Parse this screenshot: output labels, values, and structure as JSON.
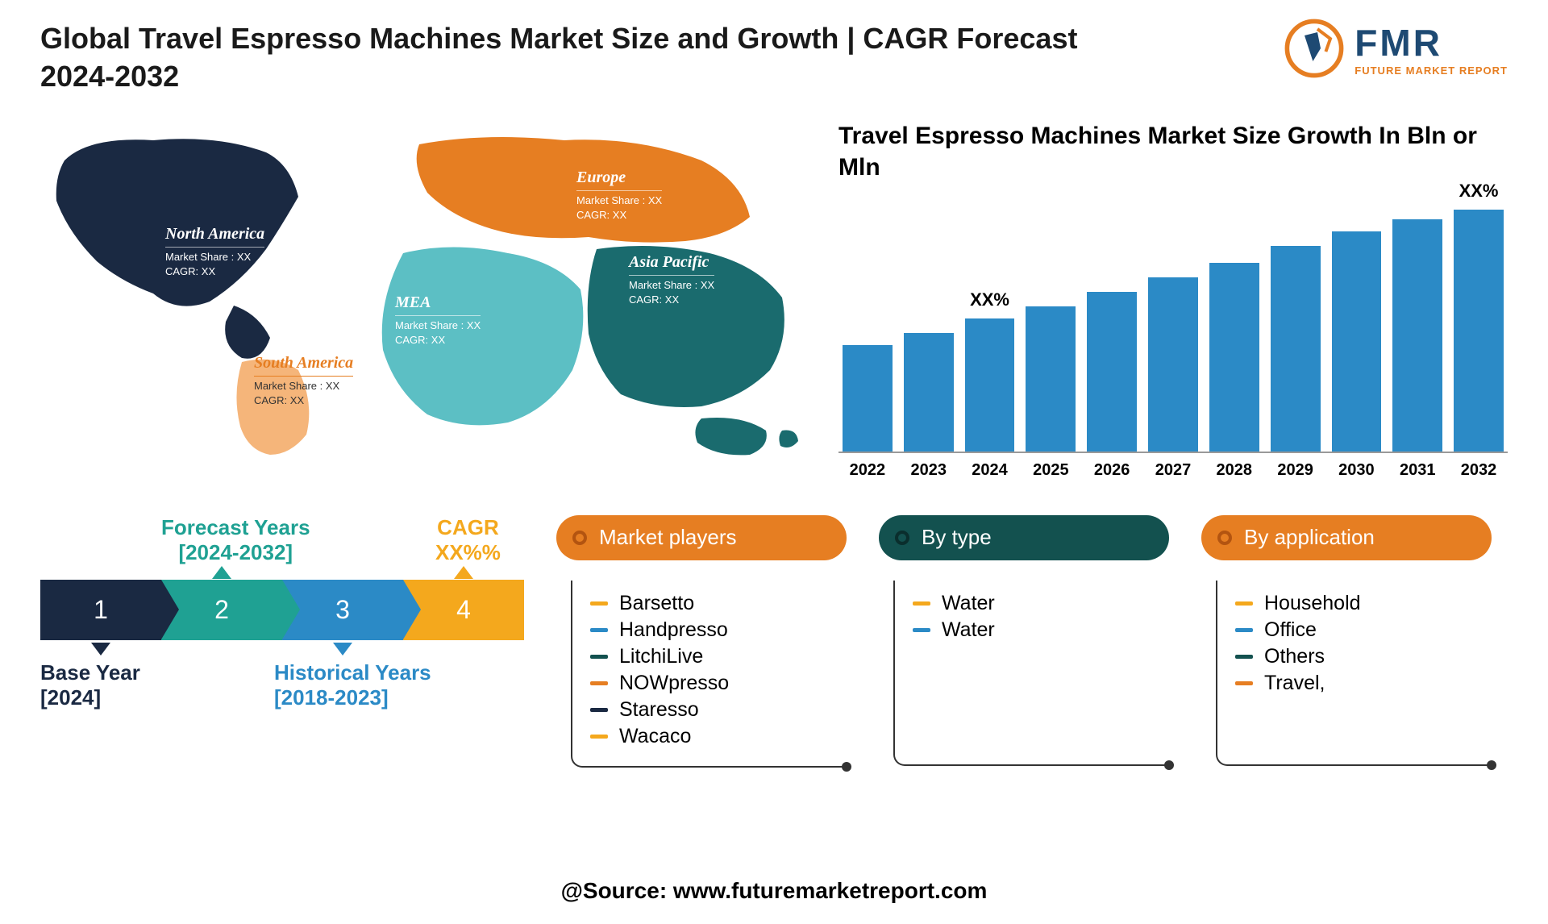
{
  "title": "Global Travel Espresso Machines Market Size and Growth | CAGR Forecast 2024-2032",
  "logo": {
    "fmr": "FMR",
    "sub": "FUTURE MARKET REPORT"
  },
  "map": {
    "regions": {
      "north_america": {
        "name": "North America",
        "share": "Market Share : XX",
        "cagr": "CAGR: XX",
        "color": "#1a2942"
      },
      "south_america": {
        "name": "South America",
        "share": "Market Share : XX",
        "cagr": "CAGR: XX",
        "color": "#f5b57a"
      },
      "europe": {
        "name": "Europe",
        "share": "Market Share : XX",
        "cagr": "CAGR: XX",
        "color": "#e67e22"
      },
      "mea": {
        "name": "MEA",
        "share": "Market Share : XX",
        "cagr": "CAGR: XX",
        "color": "#5cbfc4"
      },
      "asia_pacific": {
        "name": "Asia Pacific",
        "share": "Market Share : XX",
        "cagr": "CAGR: XX",
        "color": "#1a6b6e"
      }
    }
  },
  "bar_chart": {
    "type": "bar",
    "title": "Travel Espresso Machines Market Size Growth In Bln or Mln",
    "years": [
      "2022",
      "2023",
      "2024",
      "2025",
      "2026",
      "2027",
      "2028",
      "2029",
      "2030",
      "2031",
      "2032"
    ],
    "heights_pct": [
      44,
      49,
      55,
      60,
      66,
      72,
      78,
      85,
      91,
      96,
      100
    ],
    "bar_color": "#2b8ac6",
    "annotations": {
      "2024": "XX%",
      "2032": "XX%"
    },
    "label_fontsize": 20,
    "title_fontsize": 30,
    "axis_color": "#999999",
    "background_color": "#ffffff"
  },
  "timeline": {
    "segments": [
      {
        "num": "1",
        "color": "#1a2942"
      },
      {
        "num": "2",
        "color": "#1fa193"
      },
      {
        "num": "3",
        "color": "#2b8ac6"
      },
      {
        "num": "4",
        "color": "#f4a81d"
      }
    ],
    "labels": {
      "forecast": {
        "title": "Forecast Years",
        "range": "[2024-2032]",
        "color": "#1fa193"
      },
      "cagr": {
        "title": "CAGR",
        "range": "XX%%",
        "color": "#f4a81d"
      },
      "base": {
        "title": "Base Year",
        "range": "[2024]",
        "color": "#1a2942"
      },
      "hist": {
        "title": "Historical Years",
        "range": "[2018-2023]",
        "color": "#2b8ac6"
      }
    }
  },
  "pills": {
    "players": {
      "title": "Market players",
      "pill_color": "#e67e22",
      "items": [
        "Barsetto",
        "Handpresso",
        "LitchiLive",
        "NOWpresso",
        "Staresso",
        "Wacaco"
      ],
      "dash_colors": [
        "#f4a81d",
        "#2b8ac6",
        "#13514f",
        "#e67e22",
        "#1a2942",
        "#f4a81d"
      ]
    },
    "type": {
      "title": "By type",
      "pill_color": "#13514f",
      "items": [
        "Water",
        "Water"
      ],
      "dash_colors": [
        "#f4a81d",
        "#2b8ac6"
      ]
    },
    "application": {
      "title": "By application",
      "pill_color": "#e67e22",
      "items": [
        "Household",
        "Office",
        "Others",
        "Travel,"
      ],
      "dash_colors": [
        "#f4a81d",
        "#2b8ac6",
        "#13514f",
        "#e67e22"
      ]
    }
  },
  "source": "@Source: www.futuremarketreport.com"
}
